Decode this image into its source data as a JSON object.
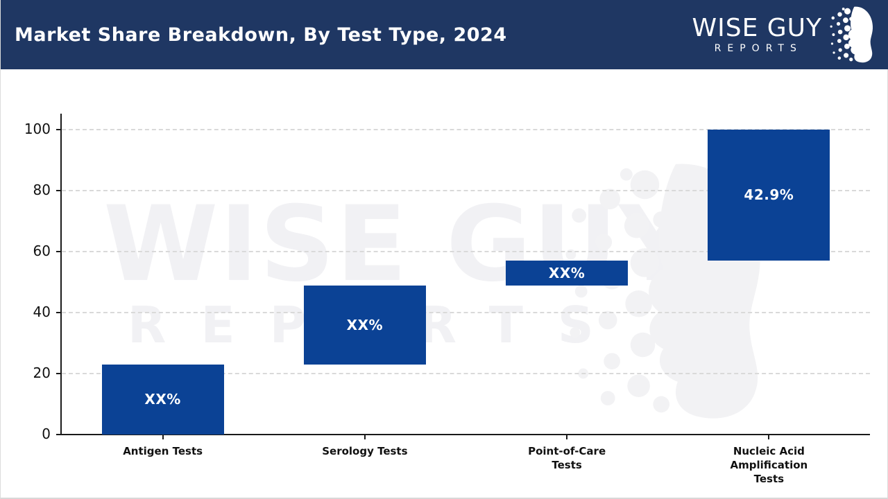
{
  "header": {
    "title": "Market Share Breakdown, By Test Type, 2024",
    "bg_color": "#1f3763",
    "logo": {
      "line1": "WISE GUY",
      "line2": "REPORTS"
    }
  },
  "watermark": {
    "line1": "WISE GUY",
    "line2": "REPORTS"
  },
  "chart_data": {
    "type": "bar",
    "subtype": "waterfall",
    "title": "Market Share Breakdown, By Test Type, 2024",
    "xlabel": "",
    "ylabel": "",
    "ylim": [
      0,
      100
    ],
    "yticks": [
      0,
      20,
      40,
      60,
      80,
      100
    ],
    "grid": "horizontal-dashed",
    "legend": "none",
    "bar_color": "#0b4295",
    "categories": [
      "Antigen Tests",
      "Serology Tests",
      "Point-of-Care\nTests",
      "Nucleic Acid\nAmplification\nTests"
    ],
    "segments": [
      {
        "category": "Antigen Tests",
        "start": 0,
        "end": 23.0,
        "label": "XX%"
      },
      {
        "category": "Serology Tests",
        "start": 23.0,
        "end": 48.9,
        "label": "XX%"
      },
      {
        "category": "Point-of-Care Tests",
        "start": 48.9,
        "end": 57.1,
        "label": "XX%"
      },
      {
        "category": "Nucleic Acid Amplification Tests",
        "start": 57.1,
        "end": 100.0,
        "label": "42.9%",
        "value": 42.9
      }
    ]
  }
}
